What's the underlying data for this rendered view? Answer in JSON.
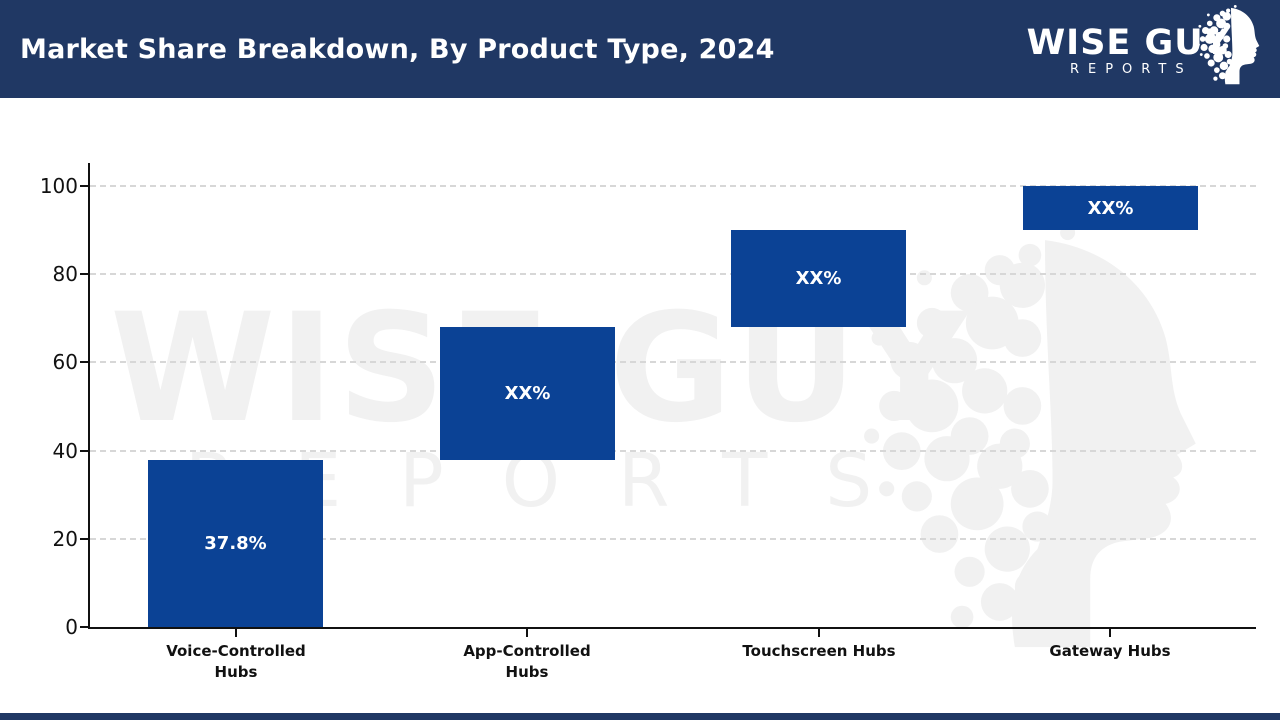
{
  "header": {
    "title": "Market Share Breakdown, By Product Type, 2024",
    "logo": {
      "line1": "WISE GUY",
      "line2": "REPORTS"
    }
  },
  "watermark": {
    "line1": "WISE GUY",
    "line2": "REPORTS"
  },
  "colors": {
    "header_bg": "#203864",
    "bar": "#0b4295",
    "bar_label": "#ffffff",
    "grid": "#d7d7d7",
    "axis": "#111111",
    "watermark": "#f1f1f1"
  },
  "chart_data": {
    "type": "bar",
    "subtype": "waterfall",
    "title": "Market Share Breakdown, By Product Type, 2024",
    "categories": [
      {
        "lines": [
          "Voice-Controlled",
          "Hubs"
        ]
      },
      {
        "lines": [
          "App-Controlled",
          "Hubs"
        ]
      },
      {
        "lines": [
          "Touchscreen Hubs"
        ]
      },
      {
        "lines": [
          "Gateway Hubs"
        ]
      }
    ],
    "segments": [
      [
        0,
        37.8
      ],
      [
        37.8,
        68
      ],
      [
        68,
        90
      ],
      [
        90,
        100
      ]
    ],
    "values": [
      37.8,
      30.2,
      22,
      10
    ],
    "bar_labels": [
      "37.8%",
      "XX%",
      "XX%",
      "XX%"
    ],
    "xlabel": "",
    "ylabel": "",
    "ylim": [
      0,
      100
    ],
    "yticks": [
      0,
      20,
      40,
      60,
      80,
      100
    ],
    "grid": "horizontal-dashed",
    "legend": "none"
  }
}
